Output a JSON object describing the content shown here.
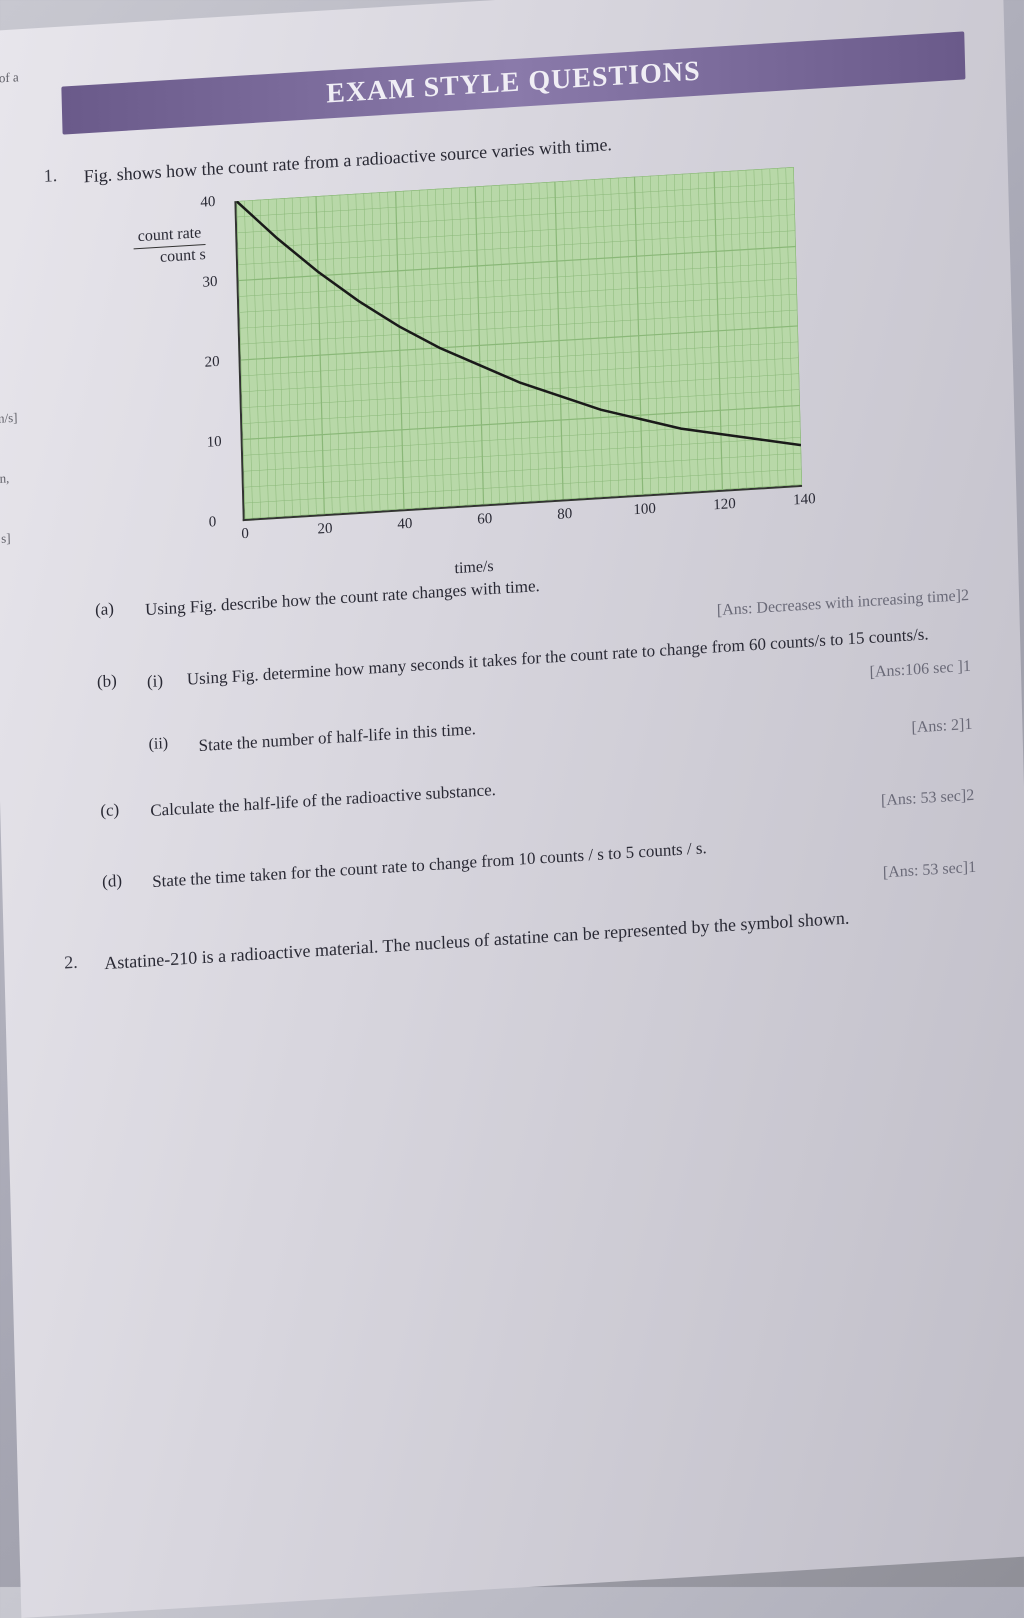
{
  "header": {
    "title": "EXAM STYLE QUESTIONS"
  },
  "margin": {
    "note1": "d of a",
    "note2": "n/s]",
    "note3": "n,",
    "note4": "s]"
  },
  "q1": {
    "num": "1.",
    "text": "Fig. shows how the count rate from a radioactive source varies with time.",
    "chart": {
      "type": "line",
      "ylabel_top": "count rate",
      "ylabel_bot": "count s",
      "xlabel": "time/s",
      "background_color": "#b8d8a8",
      "grid_color": "#8ab878",
      "axis_color": "#333333",
      "curve_color": "#1a1a1a",
      "curve_width": 2.5,
      "xlim": [
        0,
        140
      ],
      "ylim": [
        0,
        40
      ],
      "xticks": [
        0,
        20,
        40,
        60,
        80,
        100,
        120,
        140
      ],
      "yticks": [
        0,
        10,
        20,
        30,
        40
      ],
      "grid_minor_step": 2,
      "curve_points": [
        [
          0,
          40
        ],
        [
          10,
          35
        ],
        [
          20,
          30.5
        ],
        [
          30,
          26.5
        ],
        [
          40,
          23
        ],
        [
          50,
          20
        ],
        [
          60,
          17.5
        ],
        [
          70,
          15
        ],
        [
          80,
          13
        ],
        [
          90,
          11
        ],
        [
          100,
          9.5
        ],
        [
          110,
          8
        ],
        [
          120,
          7
        ],
        [
          130,
          6
        ],
        [
          140,
          5
        ]
      ]
    },
    "parts": {
      "a": {
        "label": "(a)",
        "text": "Using Fig. describe how the count rate changes with time.",
        "answer": "[Ans: Decreases with increasing time]2"
      },
      "b": {
        "label": "(b)",
        "i": {
          "label": "(i)",
          "text": "Using Fig. determine how many seconds it takes for the count rate to change from 60 counts/s to 15 counts/s.",
          "answer": "[Ans:106 sec ]1"
        },
        "ii": {
          "label": "(ii)",
          "text": "State the number of half-life in this time.",
          "answer": "[Ans: 2]1"
        }
      },
      "c": {
        "label": "(c)",
        "text": "Calculate the half-life of the radioactive substance.",
        "answer": "[Ans: 53 sec]2"
      },
      "d": {
        "label": "(d)",
        "text": "State the time taken for the count rate to change from 10 counts / s to 5 counts / s.",
        "answer": "[Ans: 53 sec]1"
      }
    }
  },
  "q2": {
    "num": "2.",
    "text": "Astatine-210 is a radioactive material. The nucleus of astatine can be represented by the symbol shown."
  }
}
